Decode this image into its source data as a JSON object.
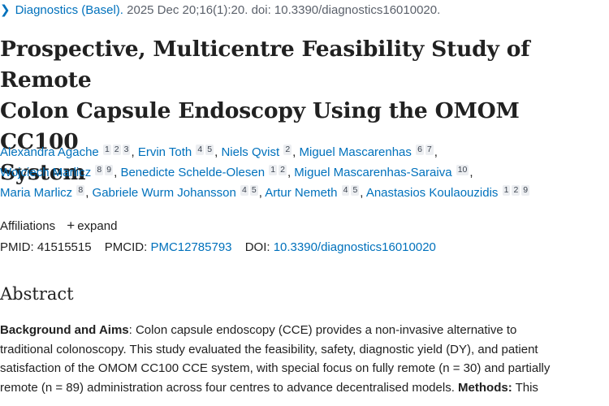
{
  "journal": {
    "chevron_icon": "chevron-right-icon",
    "name": "Diagnostics (Basel).",
    "citation": " 2025 Dec 20;16(1):20. doi: 10.3390/diagnostics16010020."
  },
  "title_lines": [
    "Prospective, Multicentre Feasibility Study of Remote",
    "Colon Capsule Endoscopy Using the OMOM CC100",
    "System"
  ],
  "authors": [
    {
      "name": "Alexandra Agache",
      "affils": [
        "1",
        "2",
        "3"
      ]
    },
    {
      "name": "Ervin Toth",
      "affils": [
        "4",
        "5"
      ]
    },
    {
      "name": "Niels Qvist",
      "affils": [
        "2"
      ]
    },
    {
      "name": "Miguel Mascarenhas",
      "affils": [
        "6",
        "7"
      ]
    },
    {
      "name": "Wojciech Marlicz",
      "affils": [
        "8",
        "9"
      ]
    },
    {
      "name": "Benedicte Schelde-Olesen",
      "affils": [
        "1",
        "2"
      ]
    },
    {
      "name": "Miguel Mascarenhas-Saraiva",
      "affils": [
        "10"
      ]
    },
    {
      "name": "Maria Marlicz",
      "affils": [
        "8"
      ]
    },
    {
      "name": "Gabriele Wurm Johansson",
      "affils": [
        "4",
        "5"
      ]
    },
    {
      "name": "Artur Nemeth",
      "affils": [
        "4",
        "5"
      ]
    },
    {
      "name": "Anastasios Koulaouzidis",
      "affils": [
        "1",
        "2",
        "9"
      ]
    }
  ],
  "affiliations": {
    "label": "Affiliations",
    "expand_icon": "plus-icon",
    "expand_label": "expand"
  },
  "ids": {
    "pmid_label": "PMID:",
    "pmid": "41515515",
    "pmcid_label": "PMCID:",
    "pmcid": "PMC12785793",
    "doi_label": "DOI:",
    "doi": "10.3390/diagnostics16010020"
  },
  "abstract": {
    "heading": "Abstract",
    "lines": [
      {
        "bold": "Background and Aims",
        "text": ": Colon capsule endoscopy (CCE) provides a non-invasive alternative to"
      },
      {
        "text": "traditional colonoscopy. This study evaluated the feasibility, safety, diagnostic yield (DY), and patient"
      },
      {
        "text": "satisfaction of the OMOM CC100 CCE system, with special focus on fully remote (n = 30) and partially"
      },
      {
        "text": "remote (n = 89) administration across four centres to advance decentralised models. ",
        "bold2": "Methods:",
        "text2": " This"
      }
    ]
  }
}
